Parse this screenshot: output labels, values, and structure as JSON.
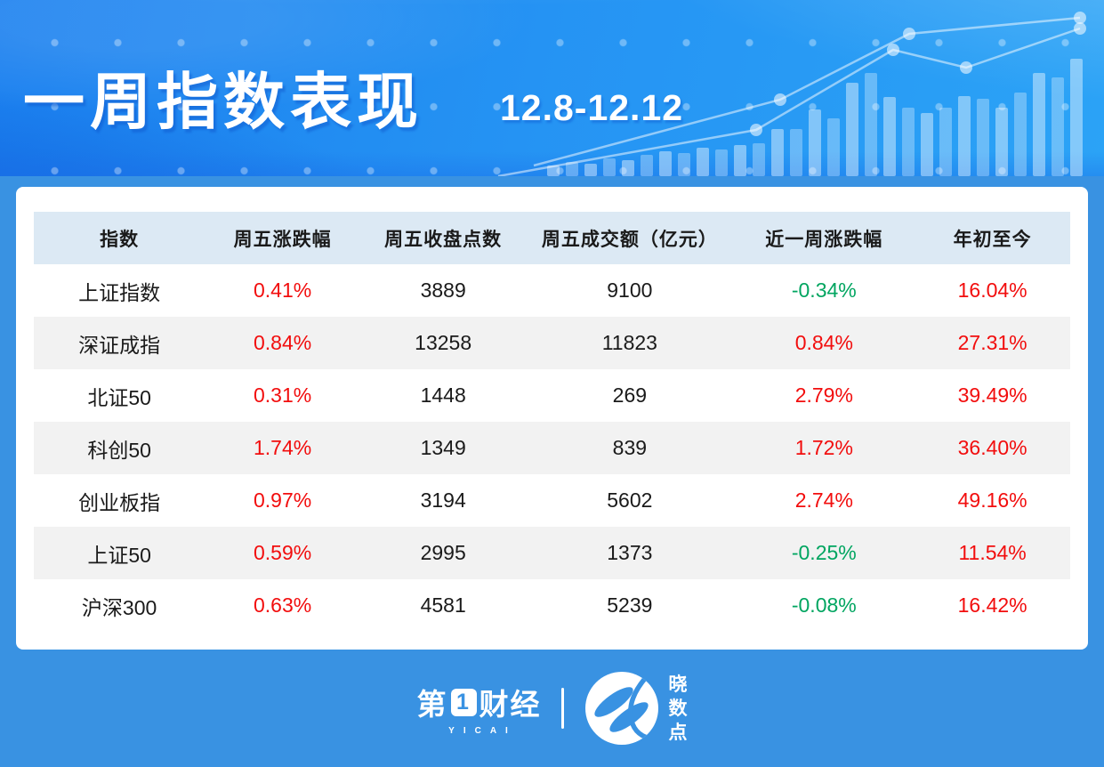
{
  "banner": {
    "title": "一周指数表现",
    "date_range": "12.8-12.12"
  },
  "chart_data": {
    "type": "table",
    "title": "一周指数表现",
    "subtitle": "12.8-12.12",
    "columns": [
      "指数",
      "周五涨跌幅",
      "周五收盘点数",
      "周五成交额（亿元）",
      "近一周涨跌幅",
      "年初至今"
    ],
    "rows": [
      [
        "上证指数",
        "0.41%",
        "3889",
        "9100",
        "-0.34%",
        "16.04%"
      ],
      [
        "深证成指",
        "0.84%",
        "13258",
        "11823",
        "0.84%",
        "27.31%"
      ],
      [
        "北证50",
        "0.31%",
        "1448",
        "269",
        "2.79%",
        "39.49%"
      ],
      [
        "科创50",
        "1.74%",
        "1349",
        "839",
        "1.72%",
        "36.40%"
      ],
      [
        "创业板指",
        "0.97%",
        "3194",
        "5602",
        "2.74%",
        "49.16%"
      ],
      [
        "上证50",
        "0.59%",
        "2995",
        "1373",
        "-0.25%",
        "11.54%"
      ],
      [
        "沪深300",
        "0.63%",
        "4581",
        "5239",
        "-0.08%",
        "16.42%"
      ]
    ],
    "value_color_rule": "positive percentages red, negative percentages green"
  },
  "colors": {
    "page_bg": "#3992e2",
    "banner_top": "#2ba3f6",
    "banner_bottom": "#1b80ef",
    "positive": "#f20d0d",
    "negative": "#00a560",
    "header_bg": "#dce9f4",
    "row_alt_bg": "#f2f2f2",
    "text_dark": "#1a1a1a",
    "white": "#ffffff"
  },
  "footer": {
    "brand_left_pre": "第",
    "brand_left_one": "1",
    "brand_left_post": "财经",
    "brand_left_sub": "YICAI",
    "brand_right_chars": [
      "晓",
      "数",
      "点"
    ]
  }
}
